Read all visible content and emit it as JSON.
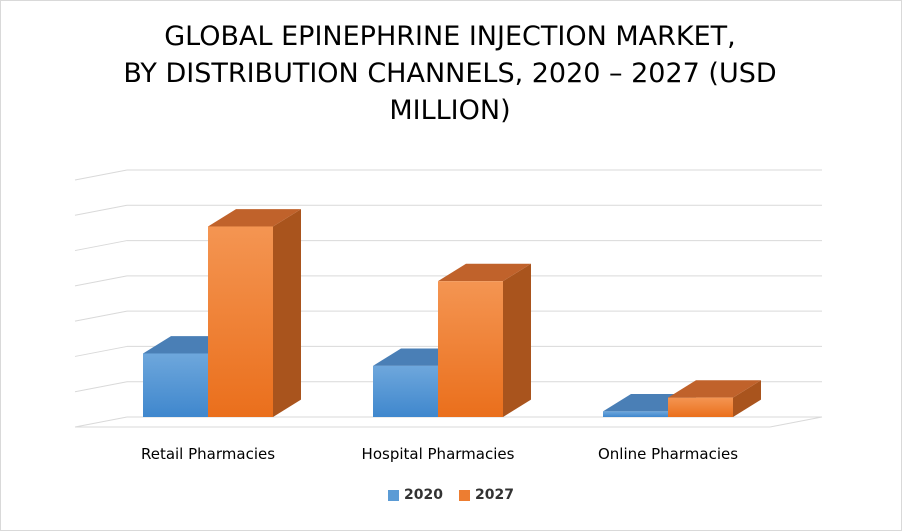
{
  "colors": {
    "series_2020": "#5b9bd5",
    "series_2027": "#ed7d31",
    "grid": "#d9d9d9"
  },
  "chart_data": {
    "type": "bar",
    "title_lines": [
      "GLOBAL EPINEPHRINE INJECTION MARKET,",
      "BY DISTRIBUTION CHANNELS, 2020 – 2027 (USD",
      "MILLION)"
    ],
    "categories": [
      "Retail Pharmacies",
      "Hospital Pharmacies",
      "Online Pharmacies"
    ],
    "series": [
      {
        "name": "2020",
        "values": [
          18,
          14.5,
          1.6
        ]
      },
      {
        "name": "2027",
        "values": [
          54,
          38.5,
          5.5
        ]
      }
    ],
    "ylim": [
      0,
      70
    ],
    "grid": true,
    "legend_position": "bottom",
    "style": "3d-column"
  }
}
